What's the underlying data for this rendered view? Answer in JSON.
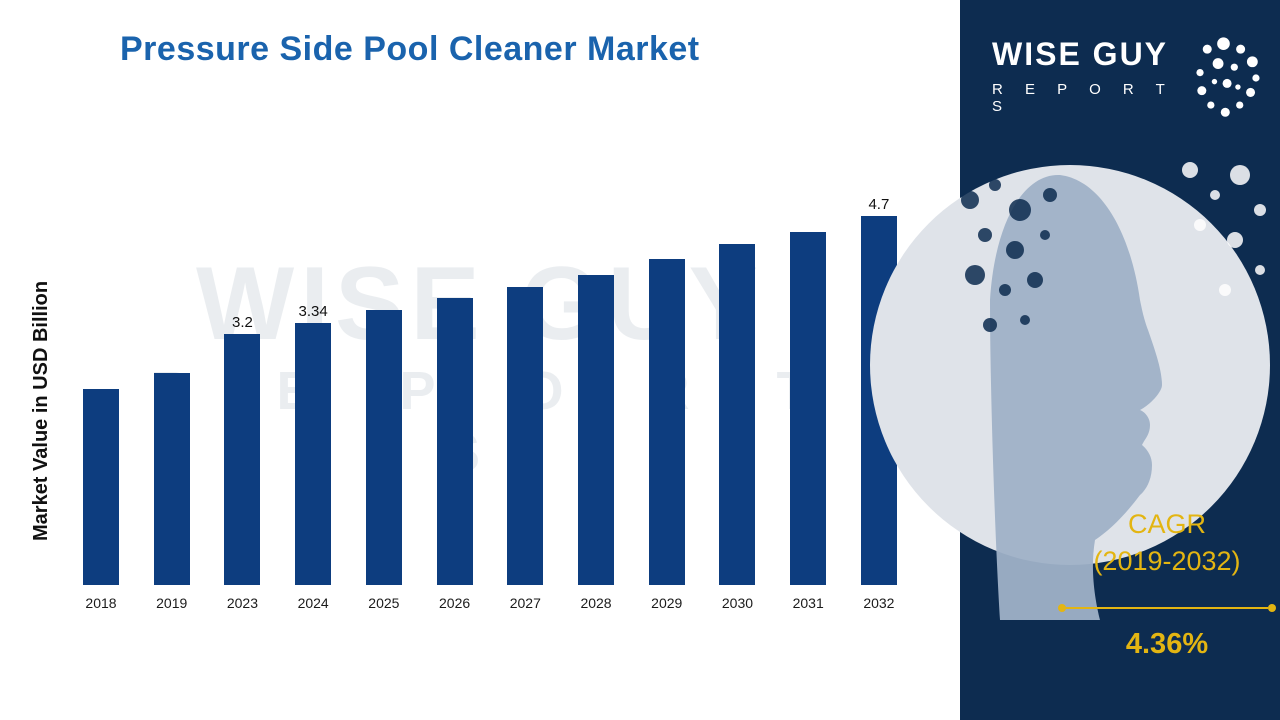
{
  "header": {
    "title": "Pressure Side Pool Cleaner Market"
  },
  "branding": {
    "logo_line1": "WISE GUY",
    "logo_line2": "R E P O R T S",
    "panel_bg": "#0d2c50",
    "accent_gold": "#e3b512",
    "icons": {
      "logo_head": "dotted-head-icon",
      "panel_face": "profile-silhouette-icon"
    }
  },
  "watermark": {
    "line1": "WISE GUY",
    "line2": "R E P O R T S"
  },
  "cagr": {
    "label": "CAGR",
    "range": "(2019-2032)",
    "value": "4.36%"
  },
  "chart_data": {
    "type": "bar",
    "title": "Pressure Side Pool Cleaner Market",
    "xlabel": "",
    "ylabel": "Market Value in USD Billion",
    "categories": [
      "2018",
      "2019",
      "2023",
      "2024",
      "2025",
      "2026",
      "2027",
      "2028",
      "2029",
      "2030",
      "2031",
      "2032"
    ],
    "values": [
      2.5,
      2.7,
      3.2,
      3.34,
      3.5,
      3.65,
      3.8,
      3.95,
      4.15,
      4.35,
      4.5,
      4.7
    ],
    "data_labels": {
      "2023": "3.2",
      "2024": "3.34",
      "2032": "4.7"
    },
    "ylim": [
      0,
      5
    ],
    "bar_color": "#0d3d7f",
    "grid": false,
    "legend": false
  }
}
